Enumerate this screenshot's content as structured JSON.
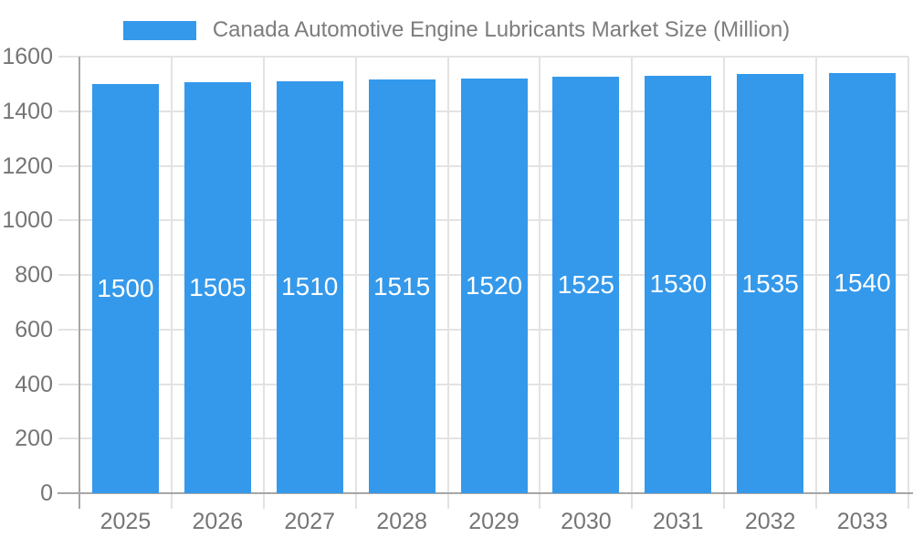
{
  "chart_data": {
    "type": "bar",
    "title": "Canada Automotive Engine Lubricants Market Size (Million)",
    "categories": [
      "2025",
      "2026",
      "2027",
      "2028",
      "2029",
      "2030",
      "2031",
      "2032",
      "2033"
    ],
    "values": [
      1500,
      1505,
      1510,
      1515,
      1520,
      1525,
      1530,
      1535,
      1540
    ],
    "xlabel": "",
    "ylabel": "",
    "ylim": [
      0,
      1600
    ],
    "yticks": [
      0,
      200,
      400,
      600,
      800,
      1000,
      1200,
      1400,
      1600
    ],
    "grid": true,
    "legend_position": "top",
    "bar_value_labels": true,
    "colors": {
      "bar": "#3499eb",
      "bar_label": "#ffffff",
      "gridline": "#e3e3e3",
      "axis_line": "#a6a6a6",
      "tick_label": "#757575",
      "title": "#7d7d7d",
      "background": "#ffffff"
    }
  }
}
